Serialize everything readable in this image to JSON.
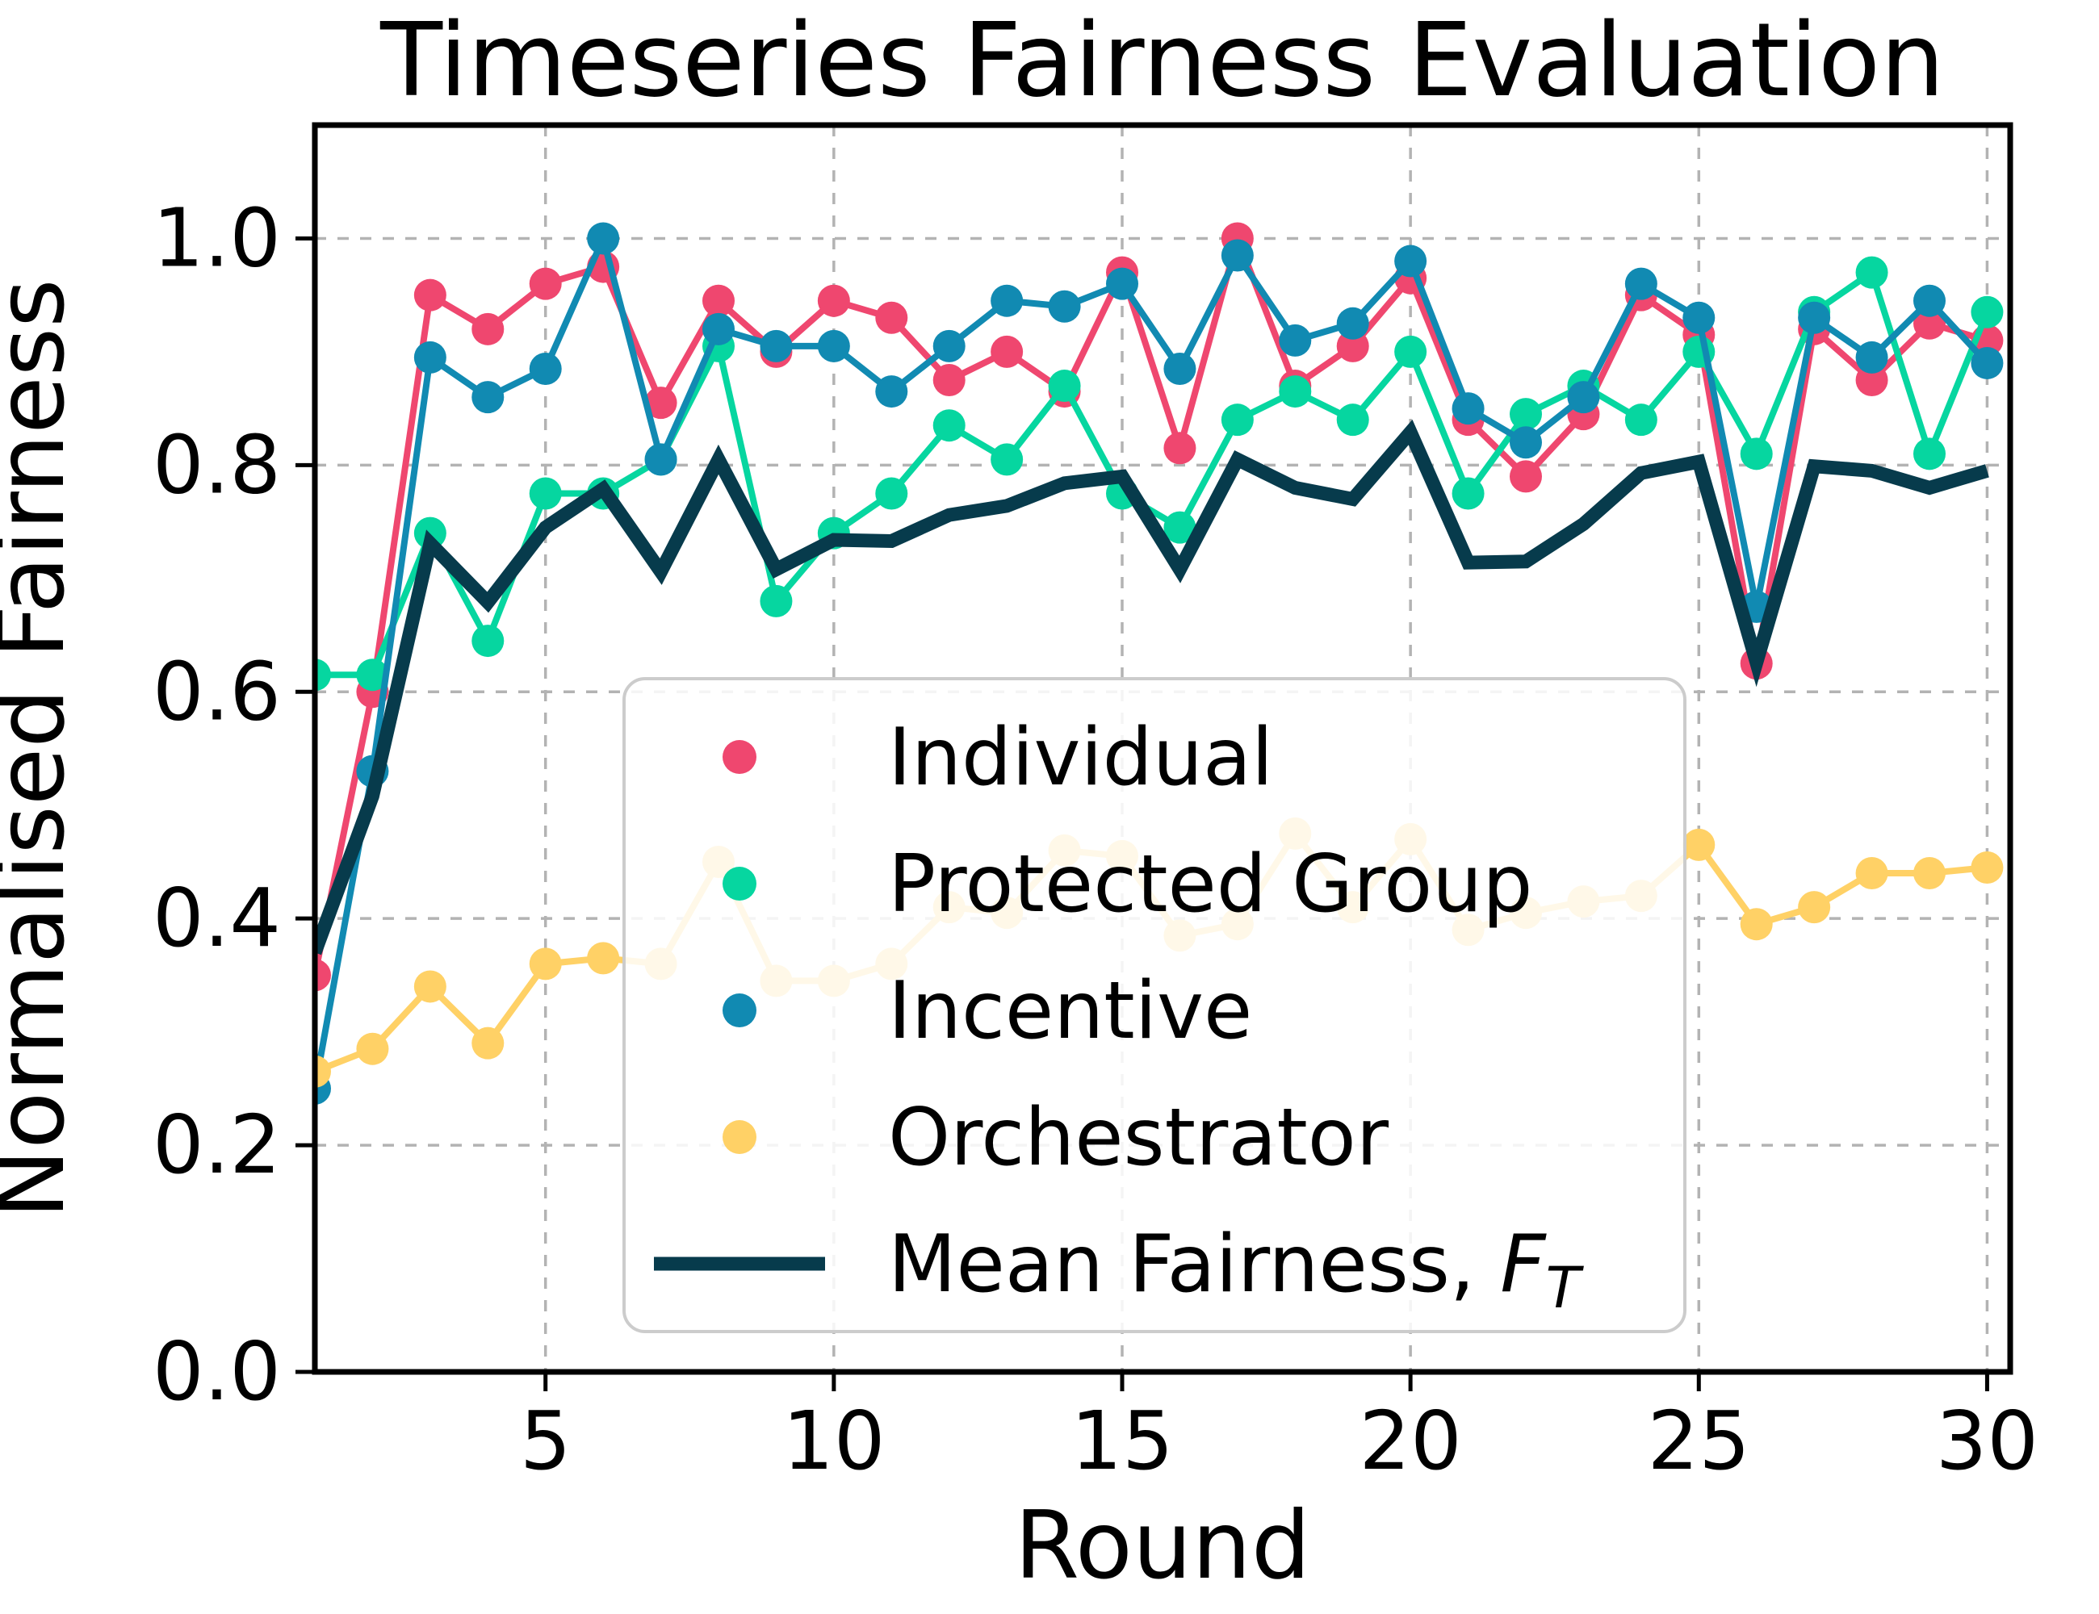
{
  "figure": {
    "title": "Timeseries Fairness Evaluation",
    "xlabel": "Round",
    "ylabel": "Normalised Fairness"
  },
  "chart_data": {
    "type": "line",
    "title": "Timeseries Fairness Evaluation",
    "xlabel": "Round",
    "ylabel": "Normalised Fairness",
    "grid": true,
    "grid_style": "dashed",
    "xlim": [
      1,
      30.4
    ],
    "ylim": [
      0,
      1.1
    ],
    "xticks": [
      5,
      10,
      15,
      20,
      25,
      30
    ],
    "yticks": [
      0.0,
      0.2,
      0.4,
      0.6,
      0.8,
      1.0
    ],
    "legend_position": "inside lower-center",
    "x": [
      1,
      2,
      3,
      4,
      5,
      6,
      7,
      8,
      9,
      10,
      11,
      12,
      13,
      14,
      15,
      16,
      17,
      18,
      19,
      20,
      21,
      22,
      23,
      24,
      25,
      26,
      27,
      28,
      29,
      30
    ],
    "series": [
      {
        "name": "Individual",
        "color": "#EF476F",
        "style": "line+marker",
        "values": [
          0.35,
          0.6,
          0.95,
          0.92,
          0.96,
          0.975,
          0.855,
          0.945,
          0.9,
          0.945,
          0.93,
          0.875,
          0.9,
          0.865,
          0.97,
          0.815,
          1.0,
          0.87,
          0.905,
          0.965,
          0.84,
          0.79,
          0.845,
          0.95,
          0.915,
          0.625,
          0.92,
          0.875,
          0.925,
          0.91
        ]
      },
      {
        "name": "Protected Group",
        "color": "#06D6A0",
        "style": "line+marker",
        "values": [
          0.615,
          0.615,
          0.74,
          0.645,
          0.775,
          0.775,
          0.805,
          0.905,
          0.68,
          0.74,
          0.775,
          0.835,
          0.805,
          0.87,
          0.775,
          0.745,
          0.84,
          0.865,
          0.84,
          0.9,
          0.775,
          0.845,
          0.87,
          0.84,
          0.9,
          0.81,
          0.935,
          0.97,
          0.81,
          0.935
        ]
      },
      {
        "name": "Incentive",
        "color": "#118AB2",
        "style": "line+marker",
        "values": [
          0.25,
          0.53,
          0.895,
          0.86,
          0.885,
          1.0,
          0.805,
          0.92,
          0.905,
          0.905,
          0.865,
          0.905,
          0.945,
          0.94,
          0.96,
          0.885,
          0.985,
          0.91,
          0.925,
          0.98,
          0.85,
          0.82,
          0.86,
          0.96,
          0.93,
          0.675,
          0.93,
          0.895,
          0.945,
          0.89
        ]
      },
      {
        "name": "Orchestrator",
        "color": "#FFD166",
        "style": "line+marker",
        "values": [
          0.265,
          0.285,
          0.34,
          0.29,
          0.36,
          0.365,
          0.36,
          0.45,
          0.345,
          0.345,
          0.36,
          0.41,
          0.405,
          0.46,
          0.455,
          0.385,
          0.395,
          0.475,
          0.41,
          0.47,
          0.39,
          0.405,
          0.415,
          0.42,
          0.465,
          0.395,
          0.41,
          0.44,
          0.44,
          0.445
        ]
      },
      {
        "name": "Mean Fairness, F_T",
        "color": "#073B4C",
        "style": "line",
        "values": [
          0.37,
          0.508,
          0.731,
          0.679,
          0.745,
          0.779,
          0.706,
          0.805,
          0.708,
          0.734,
          0.733,
          0.756,
          0.764,
          0.784,
          0.79,
          0.708,
          0.805,
          0.78,
          0.77,
          0.829,
          0.714,
          0.715,
          0.748,
          0.793,
          0.803,
          0.626,
          0.799,
          0.795,
          0.78,
          0.795
        ]
      }
    ]
  },
  "legend": {
    "entries": [
      {
        "label": "Individual",
        "color": "#EF476F",
        "swatch": "marker"
      },
      {
        "label": "Protected Group",
        "color": "#06D6A0",
        "swatch": "marker"
      },
      {
        "label": "Incentive",
        "color": "#118AB2",
        "swatch": "marker"
      },
      {
        "label": "Orchestrator",
        "color": "#FFD166",
        "swatch": "marker"
      },
      {
        "label": "Mean Fairness, ",
        "math": "F",
        "sub": "T",
        "color": "#073B4C",
        "swatch": "line"
      }
    ]
  },
  "style_colors": {
    "grid": "#b3b3b3",
    "spine": "#000000",
    "legend_border": "#cccccc",
    "legend_fill": "rgba(255,255,255,0.85)"
  }
}
